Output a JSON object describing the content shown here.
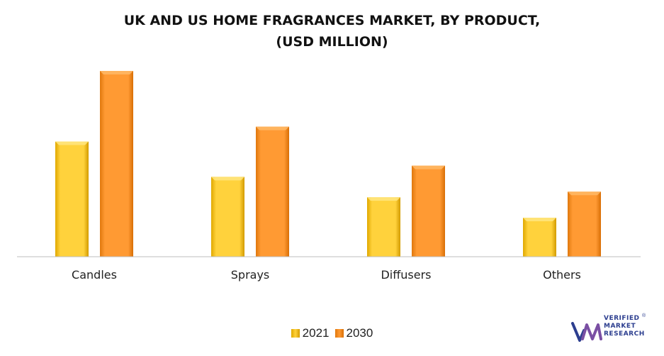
{
  "chart_data": {
    "type": "bar",
    "title_lines": [
      "UK AND US HOME FRAGRANCES MARKET, BY PRODUCT,",
      "(USD MILLION)"
    ],
    "categories": [
      "Candles",
      "Sprays",
      "Diffusers",
      "Others"
    ],
    "series": [
      {
        "name": "2021",
        "values": [
          62,
          43,
          32,
          21
        ],
        "color": "#ffd23c"
      },
      {
        "name": "2030",
        "values": [
          100,
          70,
          49,
          35
        ],
        "color": "#ff9a33"
      }
    ],
    "ylim": [
      0,
      105
    ],
    "grid": false,
    "legend_position": "bottom"
  },
  "logo": {
    "line1": "VERIFIED",
    "line2": "MARKET",
    "line3": "RESEARCH",
    "mark": "®",
    "colors": {
      "blue": "#2c3e8f",
      "purple": "#7a4fa3"
    }
  }
}
